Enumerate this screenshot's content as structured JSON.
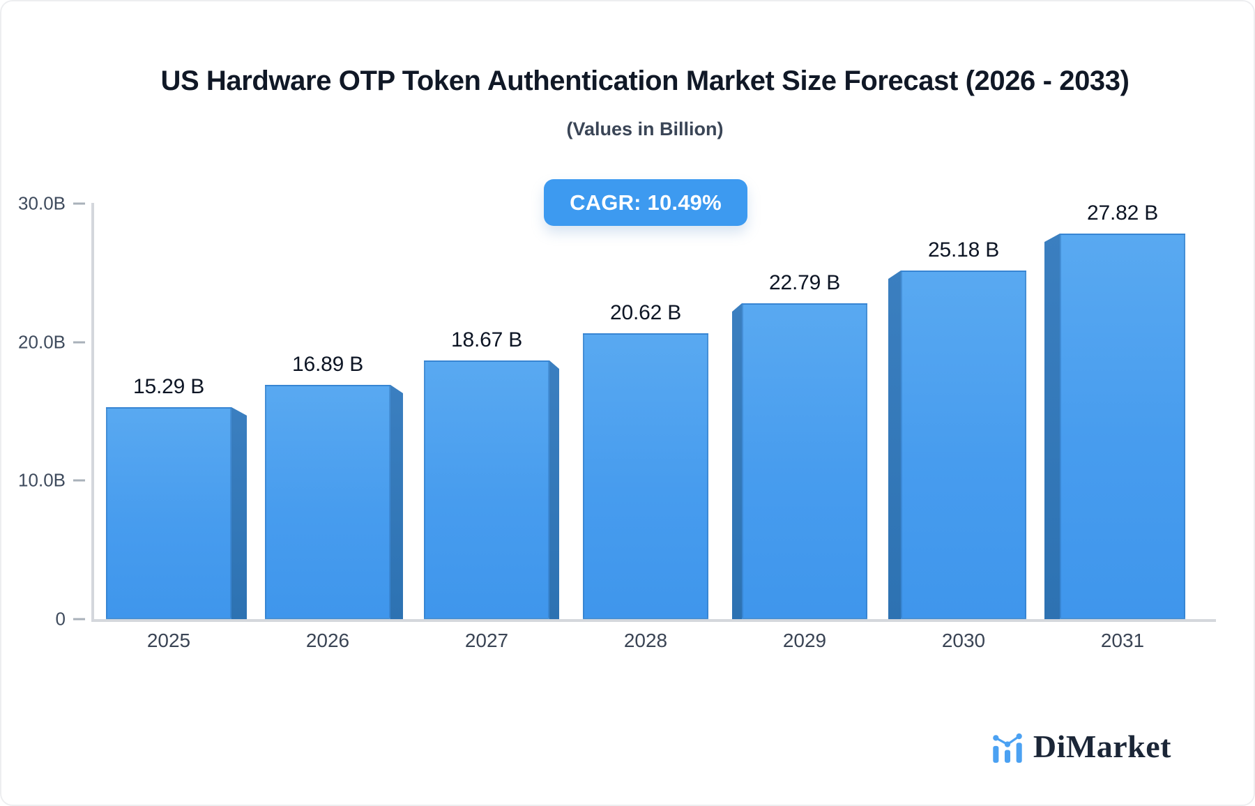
{
  "header": {
    "title": "US Hardware OTP Token Authentication Market Size Forecast (2026 - 2033)",
    "subtitle": "(Values in Billion)"
  },
  "badge": {
    "label": "CAGR: 10.49%"
  },
  "chart_data": {
    "type": "bar",
    "title": "US Hardware OTP Token Authentication Market Size Forecast (2026 - 2033)",
    "subtitle": "(Values in Billion)",
    "cagr": "10.49%",
    "categories": [
      "2025",
      "2026",
      "2027",
      "2028",
      "2029",
      "2030",
      "2031"
    ],
    "values": [
      15.29,
      16.89,
      18.67,
      20.62,
      22.79,
      25.18,
      27.82
    ],
    "data_labels": [
      "15.29 B",
      "16.89 B",
      "18.67 B",
      "20.62 B",
      "22.79 B",
      "25.18 B",
      "27.82 B"
    ],
    "unit": "Billion USD",
    "ylim": [
      0,
      30
    ],
    "yticks": [
      {
        "value": 30,
        "label": "30.0B"
      },
      {
        "value": 20,
        "label": "20.0B"
      },
      {
        "value": 10,
        "label": "10.0B"
      },
      {
        "value": 0,
        "label": "0"
      }
    ],
    "grid": false,
    "legend": false,
    "bar_style": "3d-extruded, side facets face away from center"
  },
  "branding": {
    "name": "DiMarket",
    "icon": "bar-chart-trend-icon"
  },
  "colors": {
    "badge_bg": "#3d9af0",
    "bar_face_top": "#59a9f1",
    "bar_face_mid": "#479cee",
    "bar_face_bottom": "#3f96ec",
    "bar_side_top": "#3b7fc0",
    "bar_side": "#2d72b2",
    "axis_line": "#d4d7dc",
    "tick": "#a9b1ba",
    "title_text": "#101826",
    "subtitle_text": "#3a4556",
    "label_text": "#0d1524",
    "axis_text": "#3e4a5c",
    "year_text": "#3a4454",
    "logo_text": "#1b2637",
    "logo_icon": "#4ba1f2"
  }
}
